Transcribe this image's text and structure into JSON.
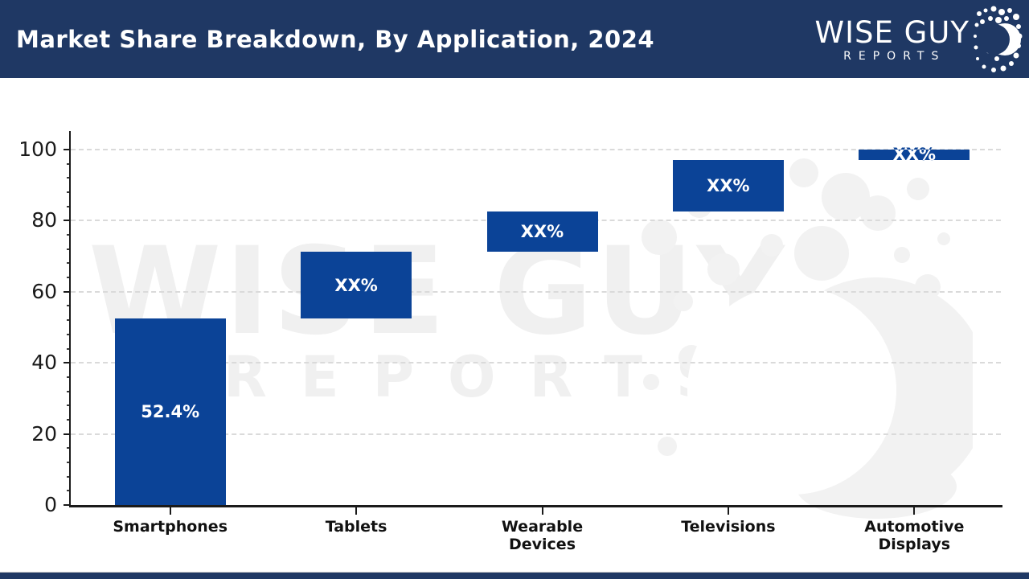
{
  "header": {
    "title": "Market Share Breakdown, By Application, 2024",
    "logo": {
      "brand": "WISE GUY",
      "sub": "REPORTS"
    }
  },
  "watermark": {
    "brand": "WISE GUY",
    "sub": "REPORTS"
  },
  "chart_data": {
    "type": "bar",
    "variant": "waterfall",
    "title": "Market Share Breakdown, By Application, 2024",
    "categories": [
      "Smartphones",
      "Tablets",
      "Wearable Devices",
      "Televisions",
      "Automotive Displays"
    ],
    "segments": [
      {
        "category": "Smartphones",
        "start": 0,
        "end": 52.4,
        "label": "52.4%"
      },
      {
        "category": "Tablets",
        "start": 52.4,
        "end": 71.2,
        "label": "XX%"
      },
      {
        "category": "Wearable Devices",
        "start": 71.2,
        "end": 82.5,
        "label": "XX%"
      },
      {
        "category": "Televisions",
        "start": 82.5,
        "end": 97.0,
        "label": "XX%"
      },
      {
        "category": "Automotive Displays",
        "start": 97.0,
        "end": 100.0,
        "label": "XX%"
      }
    ],
    "xlabel": "",
    "ylabel": "",
    "ylim": [
      0,
      100
    ],
    "yticks": [
      0,
      20,
      40,
      60,
      80,
      100
    ],
    "grid": "horizontal-dashed",
    "legend": "none",
    "bar_color": "#0b4397",
    "bar_label_color": "#ffffff"
  },
  "colors": {
    "header_bg": "#1f3864",
    "footer_bg": "#1f3864",
    "bar": "#0b4397",
    "grid": "#dadada",
    "axis": "#1a1a1a",
    "watermark": "#f0f0f0"
  }
}
